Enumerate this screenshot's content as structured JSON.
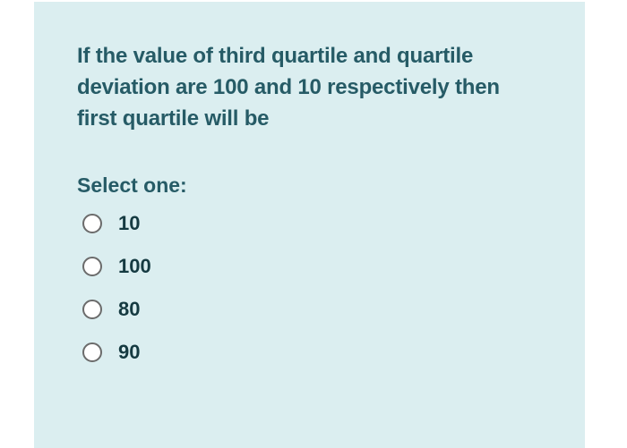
{
  "card": {
    "background_color": "#dbeef0",
    "text_color": "#265b66"
  },
  "question": "If the value of third quartile and quartile deviation are 100 and 10 respectively then first quartile will be",
  "select_label": "Select one:",
  "options": [
    {
      "label": "10"
    },
    {
      "label": "100"
    },
    {
      "label": "80"
    },
    {
      "label": "90"
    }
  ]
}
